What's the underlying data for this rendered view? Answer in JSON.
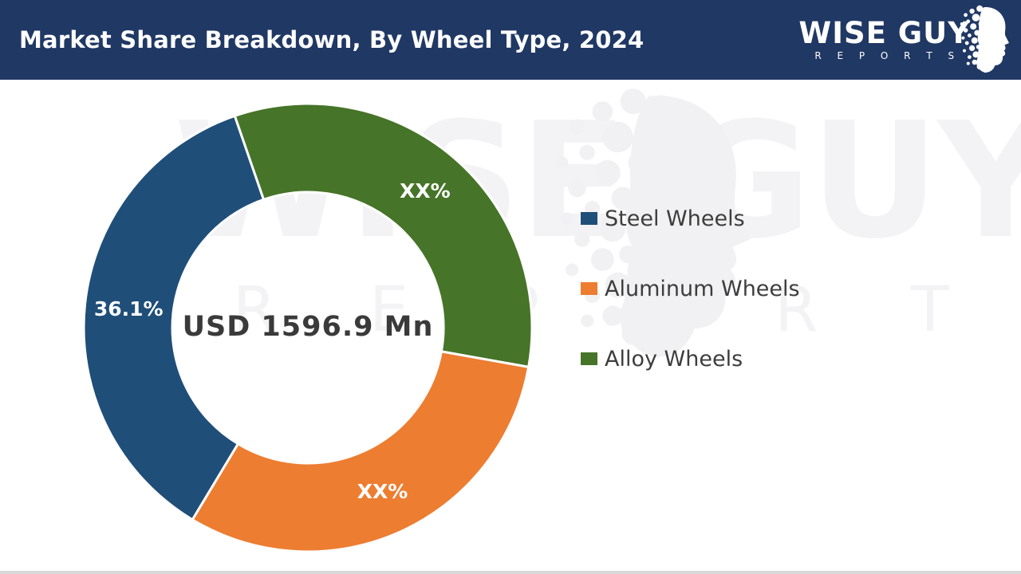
{
  "header": {
    "title": "Market Share Breakdown, By Wheel Type, 2024",
    "bg_color": "#203864",
    "logo": {
      "line1": "WISE GUY",
      "line2": "R E P O R T S"
    }
  },
  "watermark": {
    "line1": "WISE GUY",
    "line2": "R E P O R T S"
  },
  "chart_data": {
    "type": "pie",
    "donut": true,
    "title": "Market Share Breakdown, By Wheel Type, 2024",
    "center_label": "USD 1596.9 Mn",
    "legend_position": "right",
    "start_angle_deg": 121,
    "draw_order": [
      0,
      2,
      1
    ],
    "slices": [
      {
        "name": "Steel Wheels",
        "label": "36.1%",
        "value_pct": 36.1,
        "color": "#1F4E79"
      },
      {
        "name": "Aluminum Wheels",
        "label": "XX%",
        "value_pct": 30.8,
        "color": "#ED7D31"
      },
      {
        "name": "Alloy Wheels",
        "label": "XX%",
        "value_pct": 33.1,
        "color": "#467428"
      }
    ]
  },
  "footer": {
    "bar_color": "#D9D9D9"
  }
}
